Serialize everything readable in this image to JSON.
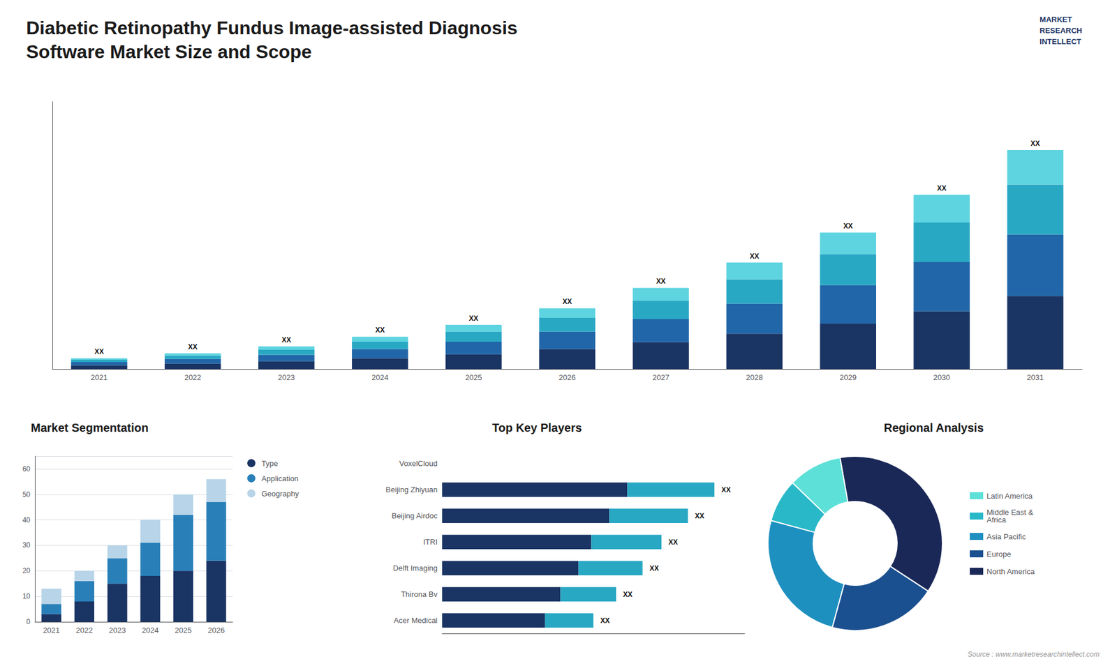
{
  "chart_data": [
    {
      "type": "bar",
      "title": "Diabetic Retinopathy Fundus Image-assisted Diagnosis\nSoftware Market Size and Scope",
      "annotations": [
        "MARKET\nRESEARCH\nINTELLECT",
        "Source : www.marketresearchintellect.com"
      ],
      "categories": [
        "2021",
        "2022",
        "2023",
        "2024",
        "2025",
        "2026",
        "2027",
        "2028",
        "2029",
        "2030",
        "2031"
      ],
      "series": [
        {
          "color": "#1a3464",
          "values": [
            1.0,
            1.4,
            2.0,
            2.8,
            3.8,
            5.2,
            7.0,
            9.2,
            11.8,
            15.0,
            19.0
          ]
        },
        {
          "color": "#2166a8",
          "values": [
            0.8,
            1.2,
            1.7,
            2.4,
            3.3,
            4.5,
            6.0,
            7.8,
            10.0,
            12.8,
            16.0
          ]
        },
        {
          "color": "#29a8c4",
          "values": [
            0.6,
            0.9,
            1.3,
            1.9,
            2.6,
            3.6,
            4.8,
            6.3,
            8.1,
            10.3,
            13.0
          ]
        },
        {
          "color": "#5dd4e0",
          "values": [
            0.4,
            0.6,
            0.9,
            1.3,
            1.8,
            2.5,
            3.3,
            4.4,
            5.6,
            7.2,
            9.0
          ],
          "value_labels": [
            "XX",
            "XX",
            "XX",
            "XX",
            "XX",
            "XX",
            "XX",
            "XX",
            "XX",
            "XX",
            "XX"
          ]
        }
      ],
      "stacked": true,
      "data_labels": true,
      "ylim": [
        0,
        69.54
      ],
      "tick_labels": "x",
      "grid": false
    },
    {
      "type": "bar",
      "title": "Market Segmentation",
      "categories": [
        "2021",
        "2022",
        "2023",
        "2024",
        "2025",
        "2026"
      ],
      "series": [
        {
          "name": "Type",
          "color": "#1a3464",
          "values": [
            3,
            8,
            15,
            18,
            20,
            24
          ]
        },
        {
          "name": "Application",
          "color": "#2980b9",
          "values": [
            4,
            8,
            10,
            13,
            22,
            23
          ]
        },
        {
          "name": "Geography",
          "color": "#b8d4e8",
          "values": [
            6,
            4,
            5,
            9,
            8,
            9
          ]
        }
      ],
      "stacked": true,
      "ylim": [
        0,
        65
      ],
      "yticks": [
        0,
        10,
        20,
        30,
        40,
        50,
        60
      ],
      "grid": true,
      "legend": "right"
    },
    {
      "type": "bar",
      "title": "Top Key Players",
      "orientation": "horizontal",
      "categories": [
        "VoxelCloud",
        "Beijing Zhiyuan",
        "Beijing Airdoc",
        "ITRI",
        "Delft Imaging",
        "Thirona Bv",
        "Acer Medical"
      ],
      "series": [
        {
          "color": "#1a3464",
          "values": [
            0,
            0.4896,
            0.442,
            0.3944,
            0.3604,
            0.3128,
            0.272
          ]
        },
        {
          "color": "#29a8c4",
          "values": [
            0,
            0.2304,
            0.208,
            0.1856,
            0.1696,
            0.1472,
            0.128
          ],
          "value_labels": [
            null,
            "XX",
            "XX",
            "XX",
            "XX",
            "XX",
            "XX"
          ]
        }
      ],
      "stacked": true,
      "data_labels": true,
      "xlim": [
        0,
        0.8
      ],
      "tick_labels": "y",
      "grid": false
    },
    {
      "type": "donut",
      "title": "Regional Analysis",
      "categories": [
        "Latin America",
        "Middle East &\nAfrica",
        "Asia Pacific",
        "Europe",
        "North America"
      ],
      "values": [
        10,
        8,
        25,
        20,
        37
      ],
      "colors": [
        "#5de0d8",
        "#29b8c8",
        "#1e90c0",
        "#1a5090",
        "#1a2858"
      ],
      "legend": "right"
    }
  ]
}
